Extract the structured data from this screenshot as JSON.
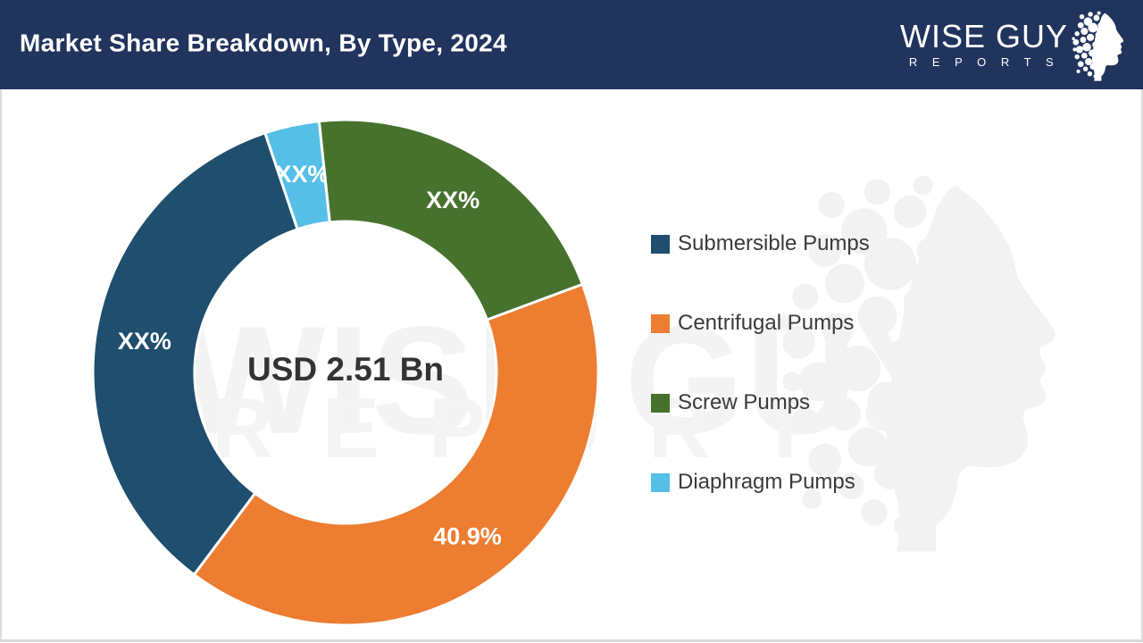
{
  "header": {
    "title": "Market Share Breakdown, By Type, 2024",
    "logo": {
      "line1": "WISE GUY",
      "line2": "R E P O R T S"
    }
  },
  "watermark": {
    "line1": "WISE GUY",
    "line2": "R E P O R T S"
  },
  "chart_data": {
    "type": "pie",
    "subtype": "donut",
    "title": "Market Share Breakdown, By Type, 2024",
    "center_label": "USD 2.51 Bn",
    "legend_position": "right",
    "start_angle_deg": -18.6,
    "segments": [
      {
        "name": "Diaphragm Pumps",
        "label": "XX%",
        "value_pct": 3.5,
        "color": "#56BFE8"
      },
      {
        "name": "Screw Pumps",
        "label": "XX%",
        "value_pct": 21.0,
        "color": "#46722E"
      },
      {
        "name": "Centrifugal Pumps",
        "label": "40.9%",
        "value_pct": 40.9,
        "color": "#ED7D31"
      },
      {
        "name": "Submersible Pumps",
        "label": "XX%",
        "value_pct": 34.6,
        "color": "#1F4E6E"
      }
    ],
    "legend_order": [
      "Submersible Pumps",
      "Centrifugal Pumps",
      "Screw Pumps",
      "Diaphragm Pumps"
    ]
  },
  "colors": {
    "header_bg": "#20345E",
    "center_text": "#333333",
    "legend_text": "#3A3A3A",
    "watermark": "#F2F2F2",
    "border": "#D9D9D9",
    "slice_separator": "#FFFFFF"
  }
}
